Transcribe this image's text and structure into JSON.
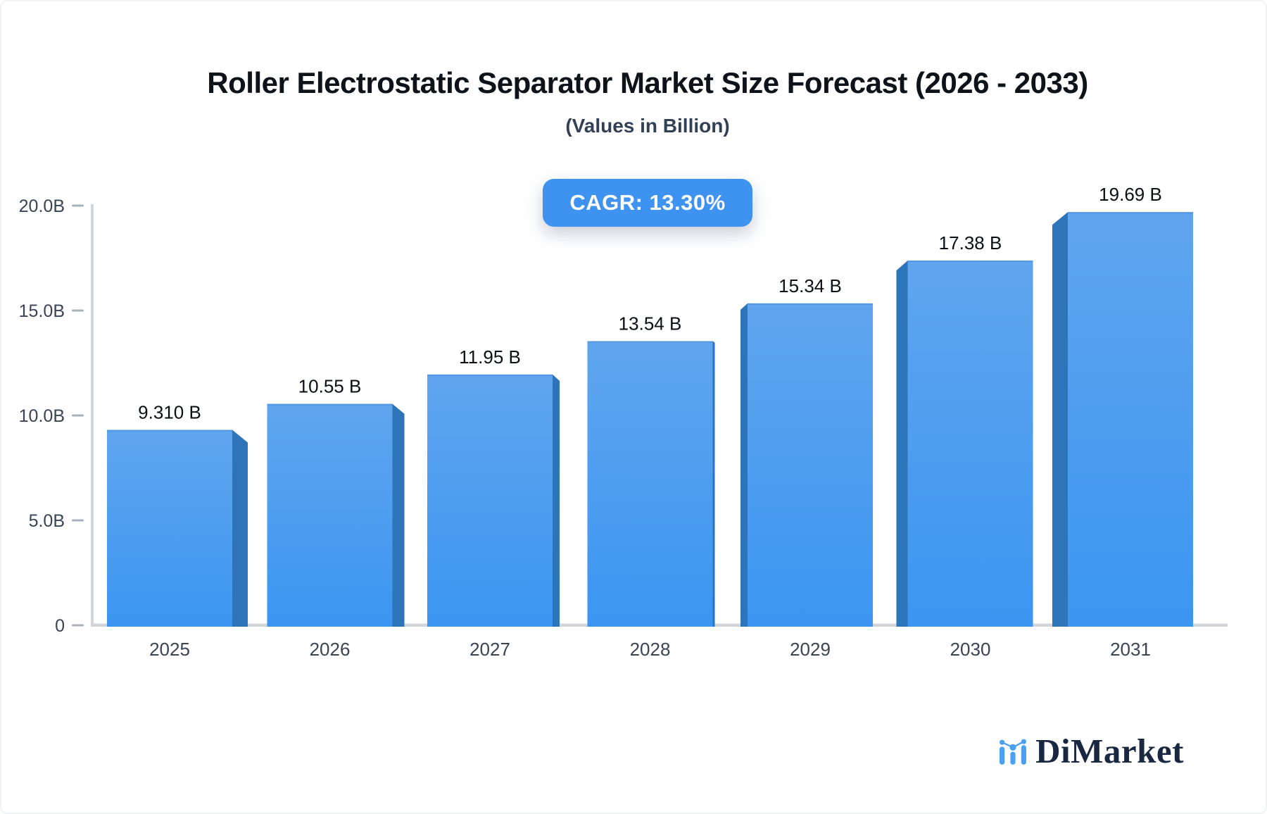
{
  "header": {
    "title": "Roller Electrostatic Separator Market Size Forecast (2026 - 2033)",
    "subtitle": "(Values in Billion)",
    "cagr_badge": "CAGR: 13.30%"
  },
  "chart_data": {
    "type": "bar",
    "title": "Roller Electrostatic Separator Market Size Forecast (2026 - 2033)",
    "subtitle": "(Values in Billion)",
    "cagr_label": "CAGR: 13.30%",
    "categories": [
      "2025",
      "2026",
      "2027",
      "2028",
      "2029",
      "2030",
      "2031"
    ],
    "values": [
      9.31,
      10.55,
      11.95,
      13.54,
      15.34,
      17.38,
      19.69
    ],
    "value_labels": [
      "9.310 B",
      "10.55 B",
      "11.95 B",
      "13.54 B",
      "15.34 B",
      "17.38 B",
      "19.69 B"
    ],
    "xlabel": "",
    "ylabel": "",
    "ylim": [
      0,
      20
    ],
    "yticks": [
      {
        "value": 0,
        "label": "0"
      },
      {
        "value": 5,
        "label": "5.0B"
      },
      {
        "value": 10,
        "label": "10.0B"
      },
      {
        "value": 15,
        "label": "15.0B"
      },
      {
        "value": 20,
        "label": "20.0B"
      }
    ],
    "grid": false,
    "legend": "none",
    "style": "pseudo-3d-bars"
  },
  "colors": {
    "bar_face_top": "#60a5ee",
    "bar_face_bottom": "#3b96f1",
    "bar_edge": "#4e93df",
    "bar_side": "#2e74b9",
    "badge_bg": "#3e93f0",
    "badge_text": "#ffffff",
    "axis": "#d2d6db",
    "tick": "#aab1ba",
    "label": "#3a4454",
    "value_label": "#0b0f14",
    "title": "#0e1319",
    "subtitle": "#324055",
    "logo_text": "#1a2740",
    "logo_icon": "#49a0f6"
  },
  "footer": {
    "logo_text": "DiMarket",
    "logo_icon": "mini-bar-chart-icon"
  }
}
